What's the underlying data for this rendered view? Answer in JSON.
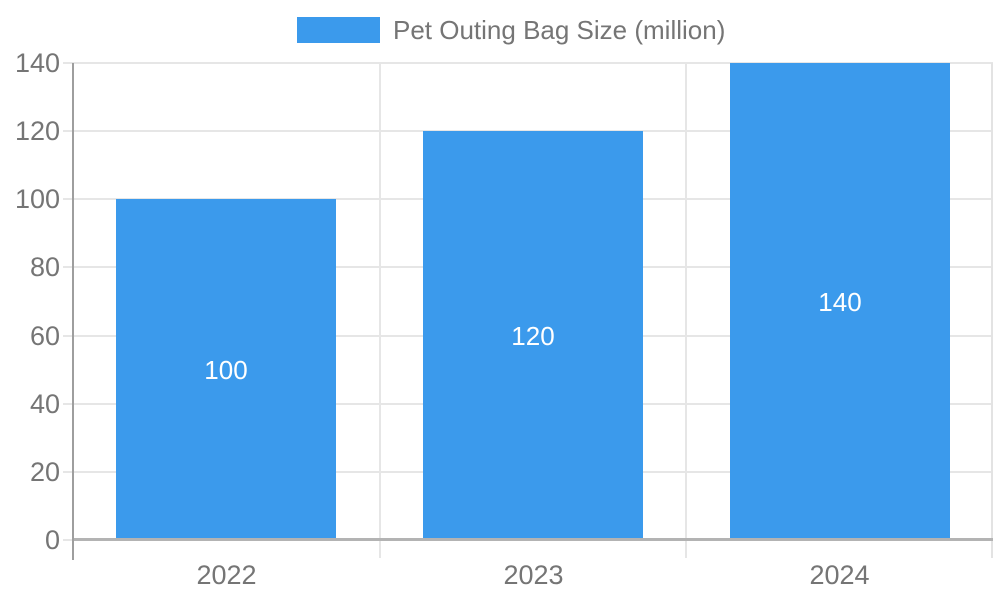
{
  "chart_data": {
    "type": "bar",
    "title": "",
    "legend_label": "Pet Outing Bag Size (million)",
    "legend_position": "top-center",
    "categories": [
      "2022",
      "2023",
      "2024"
    ],
    "values": [
      100,
      120,
      140
    ],
    "data_labels": [
      "100",
      "120",
      "140"
    ],
    "xlabel": "",
    "ylabel": "",
    "ylim": [
      0,
      140
    ],
    "yticks": [
      0,
      20,
      40,
      60,
      80,
      100,
      120,
      140
    ],
    "grid": true
  },
  "colors": {
    "bar": "#3B9AEC",
    "axis_text": "#757575",
    "gridline": "#E6E6E6",
    "baseline": "#B3B3B3",
    "axis_line": "#9E9E9E",
    "plot_right_border": "#E3E3E3",
    "data_label_text": "#FFFFFF",
    "background": "#FFFFFF"
  }
}
